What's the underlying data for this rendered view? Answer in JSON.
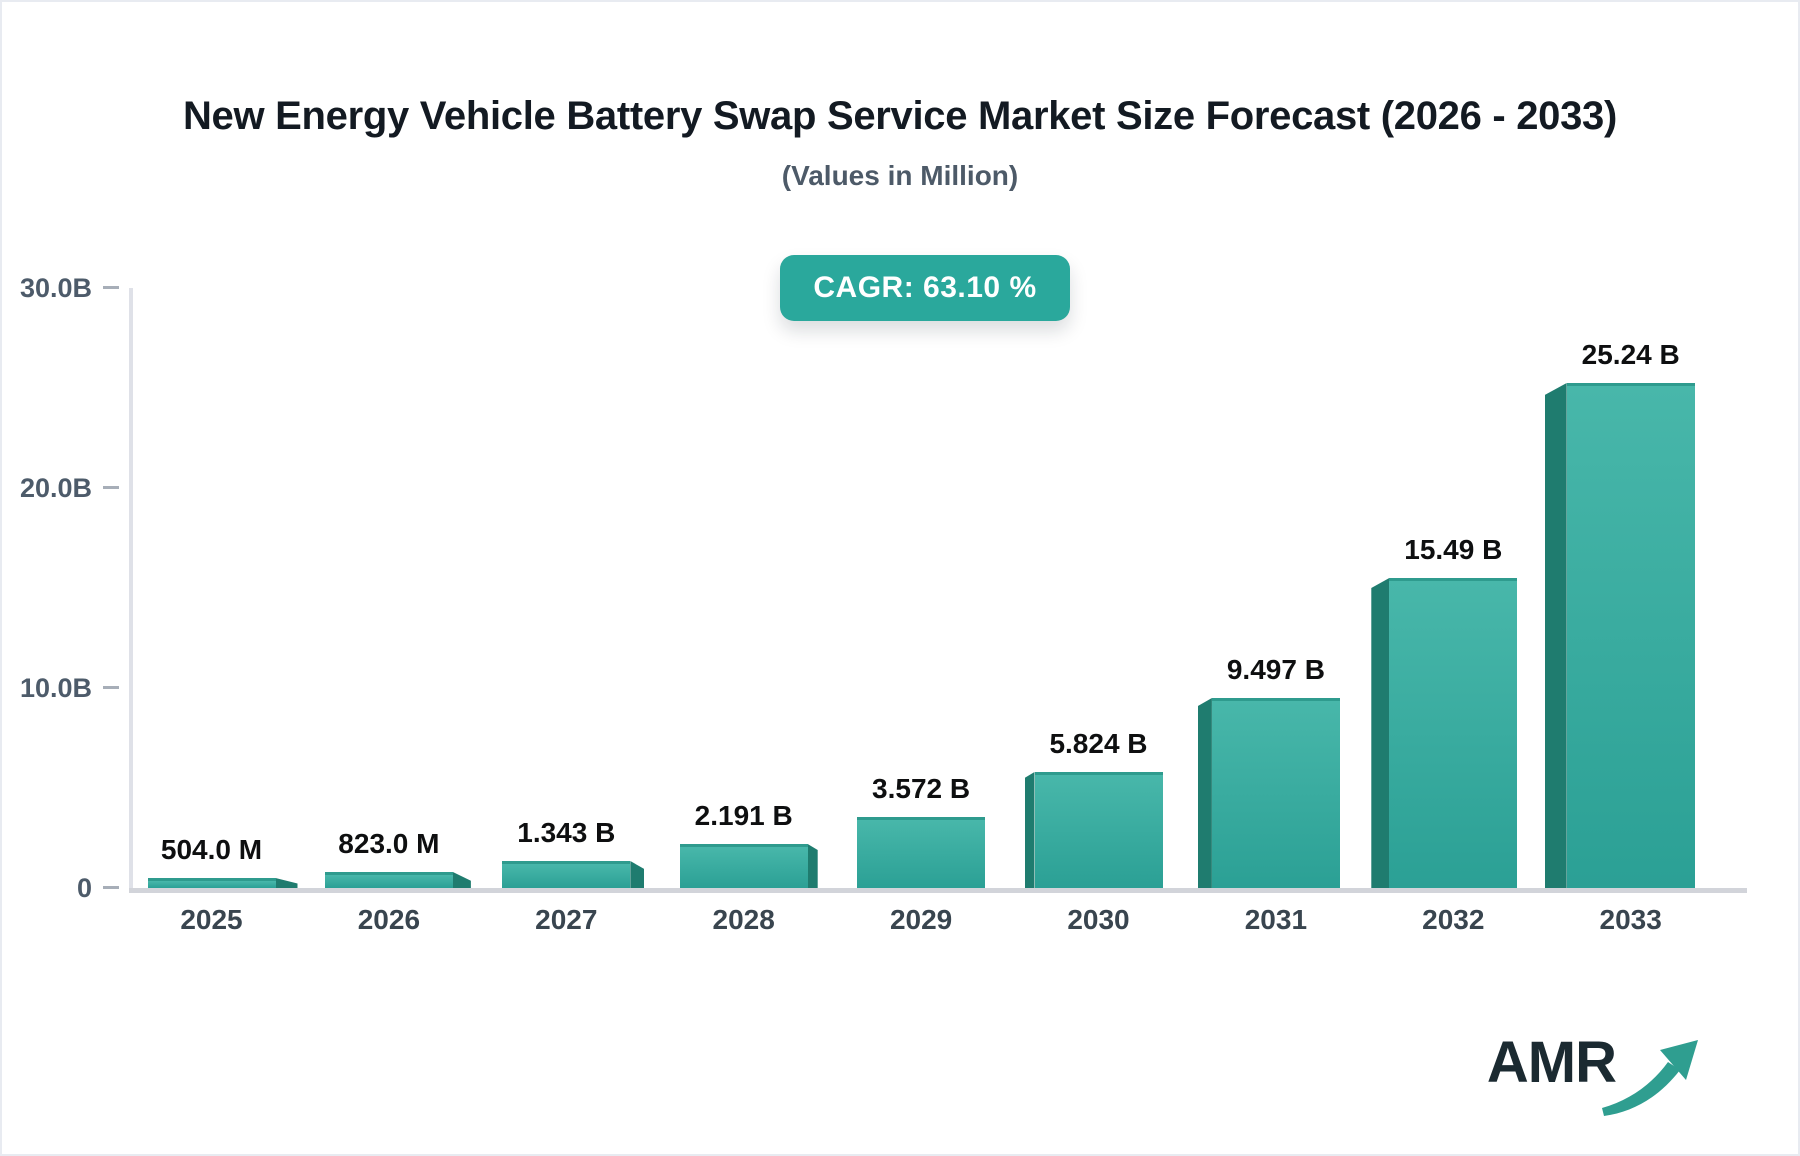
{
  "page": {
    "bg": "#ffffff",
    "border": "#e8ebf1"
  },
  "header": {
    "title": "New Energy Vehicle Battery Swap Service Market Size Forecast (2026 - 2033)",
    "subtitle": "(Values in Million)"
  },
  "badge": {
    "label": "CAGR: 63.10 %",
    "bg": "#2aa89c",
    "text_color": "#ffffff"
  },
  "chart_data": {
    "type": "bar",
    "title": "New Energy Vehicle Battery Swap Service Market Size Forecast (2026 - 2033)",
    "subtitle": "(Values in Million)",
    "cagr_label": "CAGR: 63.10 %",
    "categories": [
      "2025",
      "2026",
      "2027",
      "2028",
      "2029",
      "2030",
      "2031",
      "2032",
      "2033"
    ],
    "values_billion": [
      0.504,
      0.823,
      1.343,
      2.191,
      3.572,
      5.824,
      9.497,
      15.49,
      25.24
    ],
    "bar_labels": [
      "504.0 M",
      "823.0 M",
      "1.343 B",
      "2.191 B",
      "3.572 B",
      "5.824 B",
      "9.497 B",
      "15.49 B",
      "25.24 B"
    ],
    "xlabel": "",
    "ylabel": "",
    "ylim": [
      0,
      30
    ],
    "y_ticks": [
      {
        "label": "30.0B",
        "value": 30
      },
      {
        "label": "20.0B",
        "value": 20
      },
      {
        "label": "10.0B",
        "value": 10
      },
      {
        "label": "0",
        "value": 0
      }
    ],
    "grid": false,
    "legend": false,
    "bar_style": {
      "front_top": "#48b7aa",
      "front_bottom": "#2ba095",
      "side": "#1f7c6f",
      "top_edge": "#2f9b8e"
    },
    "axis": {
      "line_color": "#dfe1e8",
      "baseline_color": "#d2d4da",
      "tick_color": "#a7aeb8",
      "tick_label_color": "#4d5b6a",
      "x_label_color": "#39454f"
    }
  },
  "logo": {
    "text": "AMR",
    "text_color": "#1b2a31",
    "arrow_color": "#2f9e90"
  }
}
